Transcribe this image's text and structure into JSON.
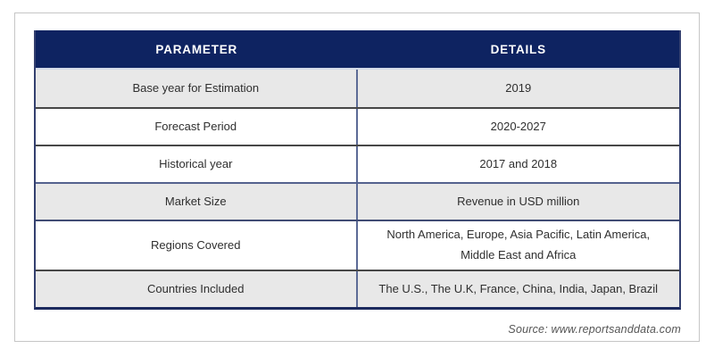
{
  "chart_data": {
    "type": "table",
    "title": "",
    "columns": [
      "PARAMETER",
      "DETAILS"
    ],
    "rows": [
      [
        "Base year for Estimation",
        "2019"
      ],
      [
        "Forecast Period",
        "2020-2027"
      ],
      [
        "Historical year",
        "2017 and 2018"
      ],
      [
        "Market Size",
        "Revenue in USD million"
      ],
      [
        "Regions Covered",
        "North America, Europe, Asia Pacific, Latin America, Middle East and Africa"
      ],
      [
        "Countries Included",
        "The U.S., The  U.K, France, China, India, Japan, Brazil"
      ]
    ]
  },
  "table": {
    "col1_header": "PARAMETER",
    "col2_header": "DETAILS",
    "rows": [
      {
        "parameter": "Base year for Estimation",
        "details": "2019"
      },
      {
        "parameter": "Forecast Period",
        "details": "2020-2027"
      },
      {
        "parameter": "Historical year",
        "details": "2017 and 2018"
      },
      {
        "parameter": "Market Size",
        "details": "Revenue in USD million"
      },
      {
        "parameter": "Regions Covered",
        "details": "North America, Europe, Asia Pacific, Latin America, Middle East and Africa"
      },
      {
        "parameter": "Countries Included",
        "details": "The U.S., The  U.K, France, China, India, Japan, Brazil"
      }
    ]
  },
  "footer": {
    "source": "Source: www.reportsanddata.com"
  },
  "colors": {
    "header_bg": "#0e2361",
    "header_text": "#ffffff",
    "row_shade_bg": "#e8e8e8",
    "row_white_bg": "#ffffff",
    "column_divider": "#5c6b96",
    "row_separator": "#474747",
    "table_border": "#34406f",
    "body_text": "#2f2f2f",
    "source_text": "#555555",
    "card_border": "#c6c6c6"
  }
}
